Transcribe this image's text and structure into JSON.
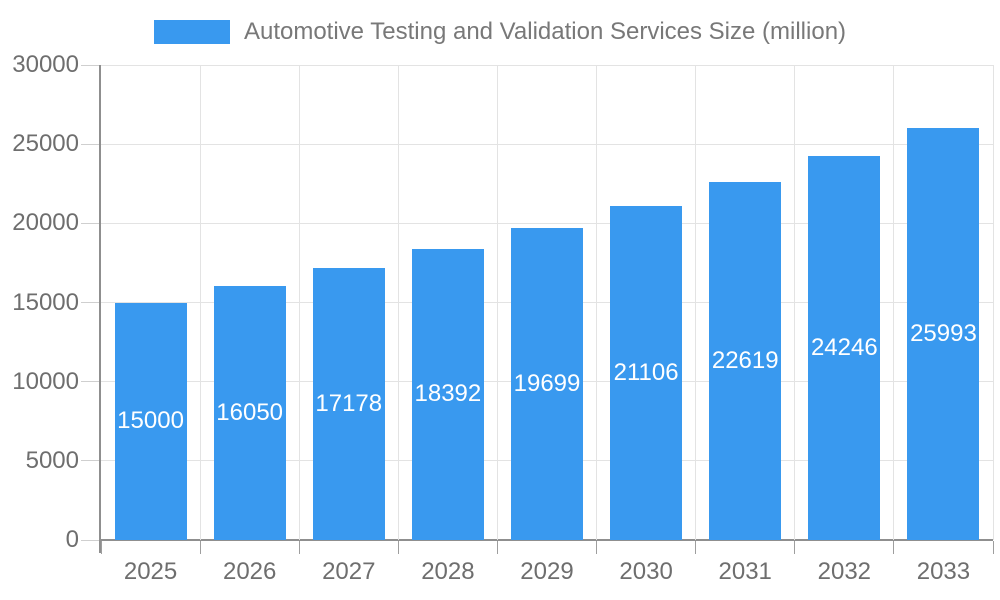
{
  "legend": {
    "label": "Automotive Testing and Validation Services Size (million)"
  },
  "chart_data": {
    "type": "bar",
    "title": "Automotive Testing and Validation Services Size (million)",
    "categories": [
      "2025",
      "2026",
      "2027",
      "2028",
      "2029",
      "2030",
      "2031",
      "2032",
      "2033"
    ],
    "values": [
      15000,
      16050,
      17178,
      18392,
      19699,
      21106,
      22619,
      24246,
      25993
    ],
    "value_labels": [
      "15000",
      "16050",
      "17178",
      "18392",
      "19699",
      "21106",
      "22619",
      "24246",
      "25993"
    ],
    "xlabel": "",
    "ylabel": "",
    "ylim": [
      0,
      30000
    ],
    "yticks": [
      0,
      5000,
      10000,
      15000,
      20000,
      25000,
      30000
    ],
    "ytick_labels": [
      "0",
      "5000",
      "10000",
      "15000",
      "20000",
      "25000",
      "30000"
    ],
    "grid": true,
    "legend_position": "top",
    "value_label_position": "inside-center",
    "colors": {
      "bar_fill": "#3999EF",
      "bar_label_text": "#FFFFFF",
      "axis_line": "#8F8F8F",
      "gridline": "#E3E3E3",
      "tick_label_text": "#6E6E6E",
      "legend_text": "#787878",
      "background": "#FFFFFF"
    }
  }
}
